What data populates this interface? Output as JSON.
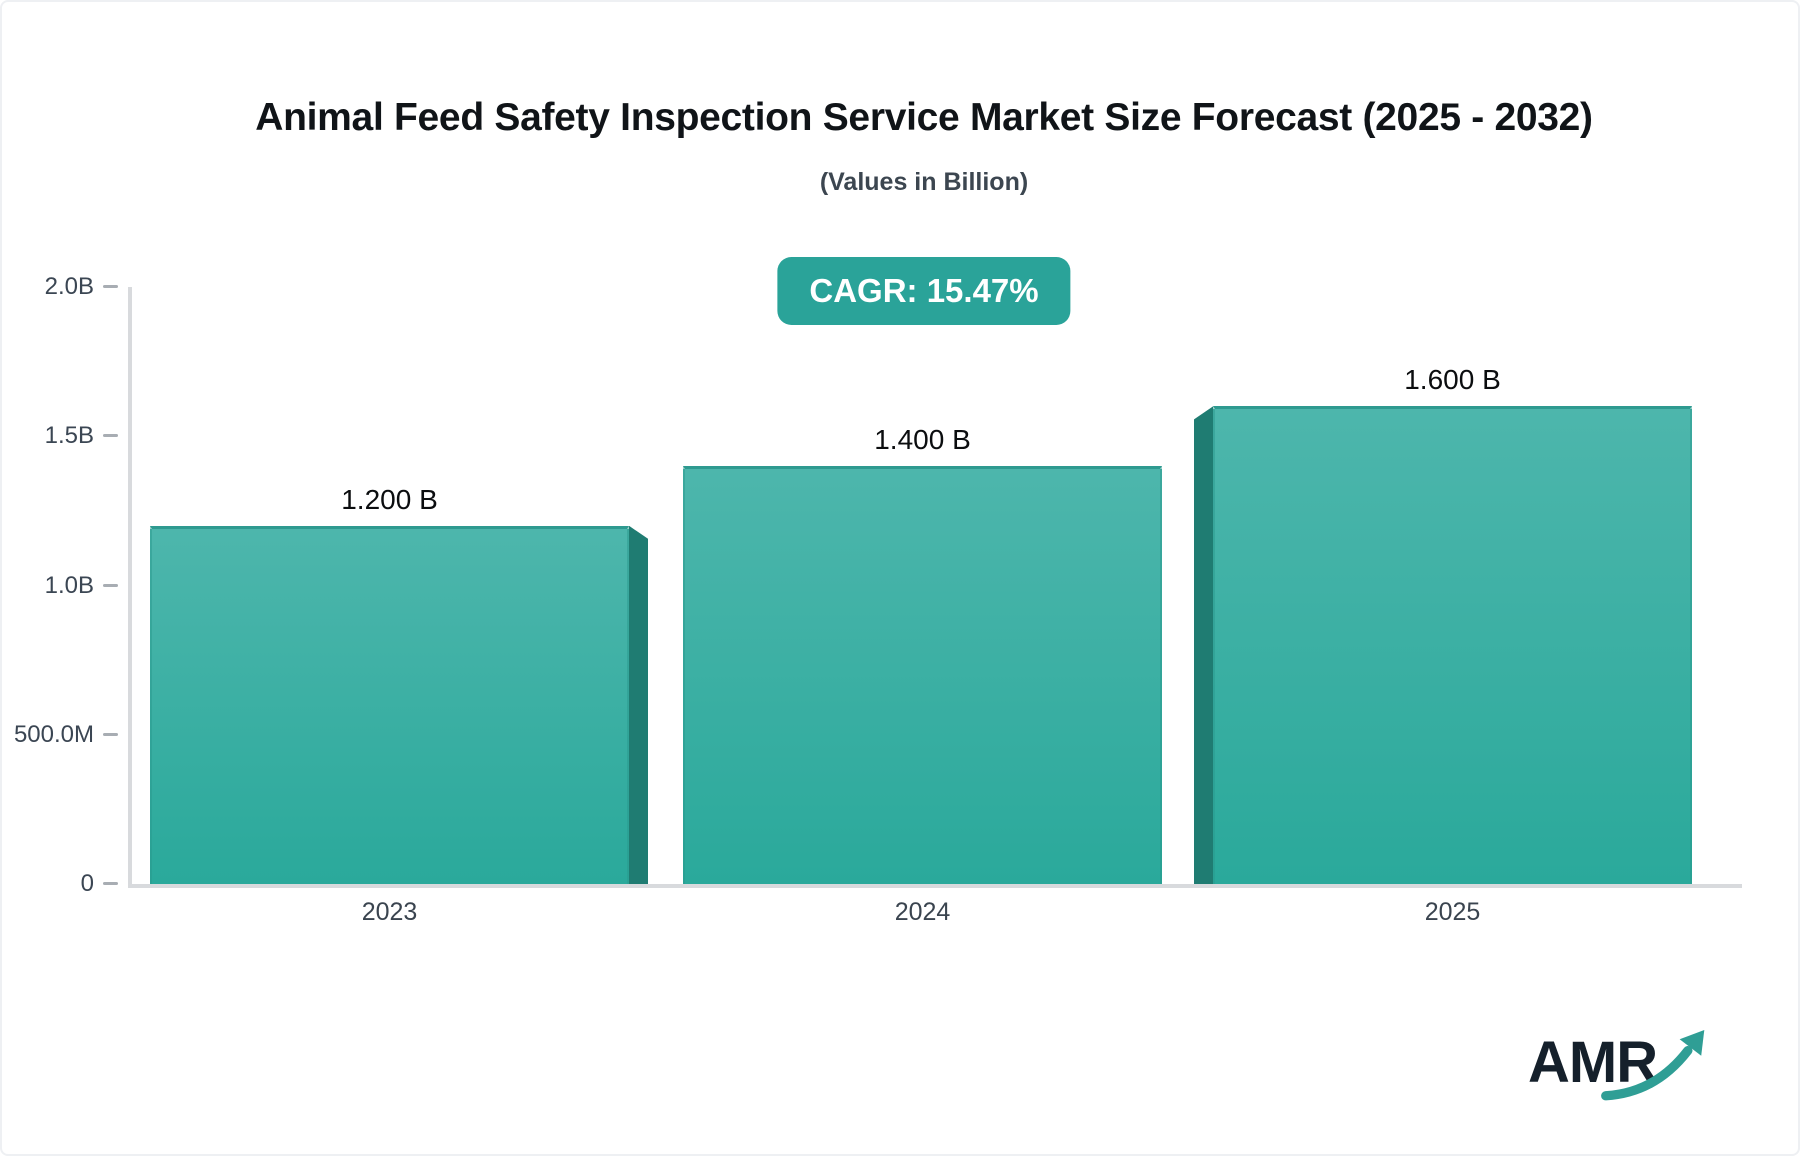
{
  "header": {
    "title": "Animal Feed Safety Inspection Service Market Size Forecast (2025 - 2032)",
    "subtitle": "(Values in Billion)",
    "cagr_badge": "CAGR: 15.47%"
  },
  "chart_data": {
    "type": "bar",
    "title": "Animal Feed Safety Inspection Service Market Size Forecast (2025 - 2032)",
    "subtitle": "(Values in Billion)",
    "unit": "Billion",
    "categories": [
      "2023",
      "2024",
      "2025"
    ],
    "values": [
      1.2,
      1.4,
      1.6
    ],
    "value_labels": [
      "1.200 B",
      "1.400 B",
      "1.600 B"
    ],
    "cagr": "15.47%",
    "ylim": [
      0,
      2.0
    ],
    "y_ticks": [
      {
        "value": 2.0,
        "label": "2.0B"
      },
      {
        "value": 1.5,
        "label": "1.5B"
      },
      {
        "value": 1.0,
        "label": "1.0B"
      },
      {
        "value": 0.5,
        "label": "500.0M"
      },
      {
        "value": 0,
        "label": "0"
      }
    ],
    "grid": false,
    "legend": false,
    "colors": {
      "bar_top": "#4db6ac",
      "bar_bottom": "#2aa99b",
      "bar_side": "#1f7c72",
      "badge_bg": "#2aa399",
      "axis_line": "#d8dadd",
      "tick_text": "#3b4653",
      "value_text": "#0b0d0f",
      "logo_text": "#15202b",
      "logo_arrow": "#2f9e95"
    }
  },
  "branding": {
    "logo_text": "AMR"
  }
}
